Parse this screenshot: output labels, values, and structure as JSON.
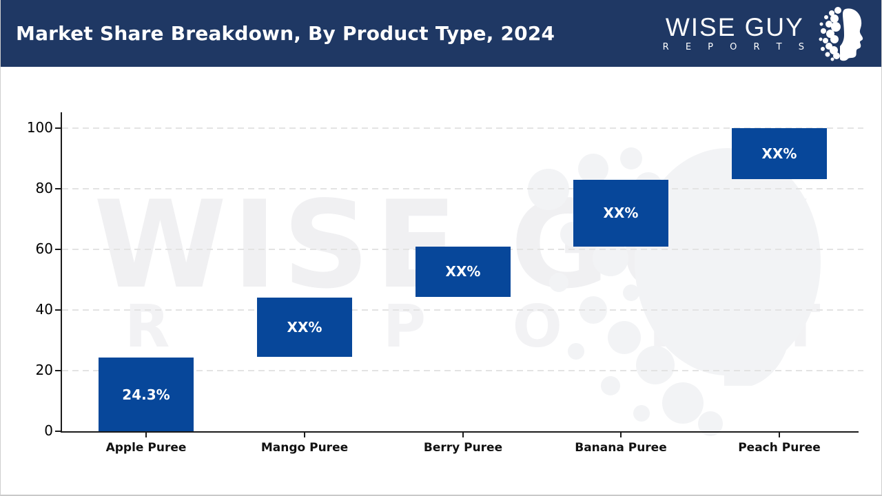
{
  "header": {
    "title": "Market Share Breakdown, By Product Type, 2024",
    "brand_line1": "WISE GUY",
    "brand_line2": "R E P O R T S"
  },
  "watermark": {
    "line1": "WISE GUY",
    "line2": "R E P O R T S"
  },
  "colors": {
    "header_bg": "#1f3864",
    "bar": "#07479a",
    "grid": "#e3e3e3",
    "axis": "#1a1a1a",
    "watermark": "#f2f3f5"
  },
  "chart_data": {
    "type": "bar",
    "subtype": "waterfall-segments",
    "title": "Market Share Breakdown, By Product Type, 2024",
    "xlabel": "",
    "ylabel": "",
    "ylim": [
      0,
      100
    ],
    "yticks": [
      "0",
      "20",
      "40",
      "60",
      "80",
      "100"
    ],
    "grid": true,
    "categories": [
      "Apple Puree",
      "Mango Puree",
      "Berry Puree",
      "Banana Puree",
      "Peach Puree"
    ],
    "segments": [
      {
        "category": "Apple Puree",
        "start": 0,
        "end": 24.3,
        "label": "24.3%"
      },
      {
        "category": "Mango Puree",
        "start": 24.5,
        "end": 44.2,
        "label": "XX%"
      },
      {
        "category": "Berry Puree",
        "start": 44.4,
        "end": 61.0,
        "label": "XX%"
      },
      {
        "category": "Banana Puree",
        "start": 61.0,
        "end": 83.0,
        "label": "XX%"
      },
      {
        "category": "Peach Puree",
        "start": 83.2,
        "end": 100.0,
        "label": "XX%"
      }
    ]
  }
}
